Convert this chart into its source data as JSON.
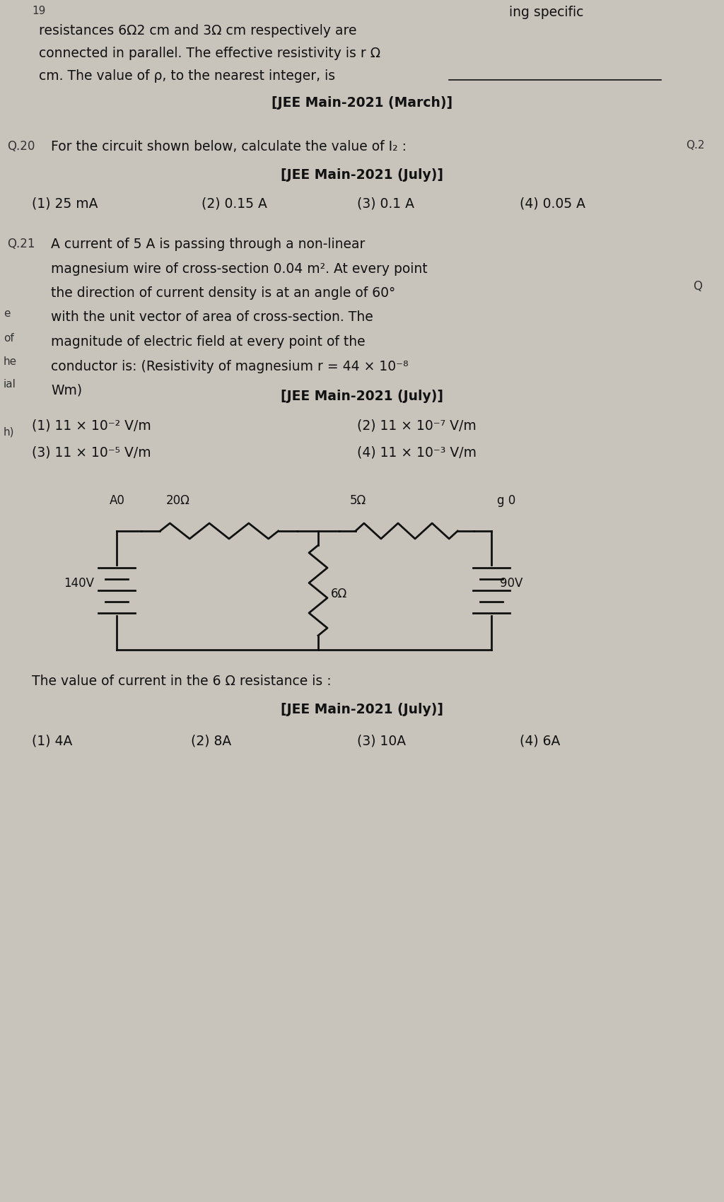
{
  "bg_color": "#c8c4bc",
  "text_color": "#111111",
  "page_width": 10.24,
  "page_height": 17.0,
  "top_line1": "resistances 6Ω2 cm and 3Ω cm respectively are",
  "top_line2": "connected in parallel. The effective resistivity is r Ω",
  "top_line3": "cm. The value of ρ, to the nearest integer, is",
  "top_source": "[JEE Main-2021 (March)]",
  "top_prefix": "19",
  "q20_prefix": "Q.20",
  "q20_text": "For the circuit shown below, calculate the value of I₂ :",
  "q20_source": "[JEE Main-2021 (July)]",
  "q20_right": "Q.2",
  "q20_options": [
    "(1) 25 mA",
    "(2) 0.15 A",
    "(3) 0.1 A",
    "(4) 0.05 A"
  ],
  "q21_prefix": "Q.21",
  "q21_lines": [
    "A current of 5 A is passing through a non-linear",
    "magnesium wire of cross-section 0.04 m². At every point",
    "the direction of current density is at an angle of 60°",
    "with the unit vector of area of cross-section. The",
    "magnitude of electric field at every point of the",
    "conductor is: (Resistivity of magnesium r = 44 × 10⁻⁸",
    "Wm)"
  ],
  "q21_source": "[JEE Main-2021 (July)]",
  "q21_right": "Q",
  "q21_options_col1": [
    "(1) 11 × 10⁻² V/m",
    "(3) 11 × 10⁻⁵ V/m"
  ],
  "q21_options_col2": [
    "(2) 11 × 10⁻⁷ V/m",
    "(4) 11 × 10⁻³ V/m"
  ],
  "circ_top_labels": [
    "A0",
    "20Ω",
    "5Ω",
    "g 0"
  ],
  "circ_left_label": "140V",
  "circ_mid_label": "6Ω",
  "circ_right_label": "90V",
  "circ_question": "The value of current in the 6 Ω resistance is :",
  "circ_source": "[JEE Main-2021 (July)]",
  "circ_options": [
    "(1) 4A",
    "(2) 8A",
    "(3) 10A",
    "(4) 6A"
  ],
  "left_margin_labels": [
    "e",
    "of",
    "he",
    "ial",
    "h)"
  ],
  "top_right_partial": "ing specific"
}
